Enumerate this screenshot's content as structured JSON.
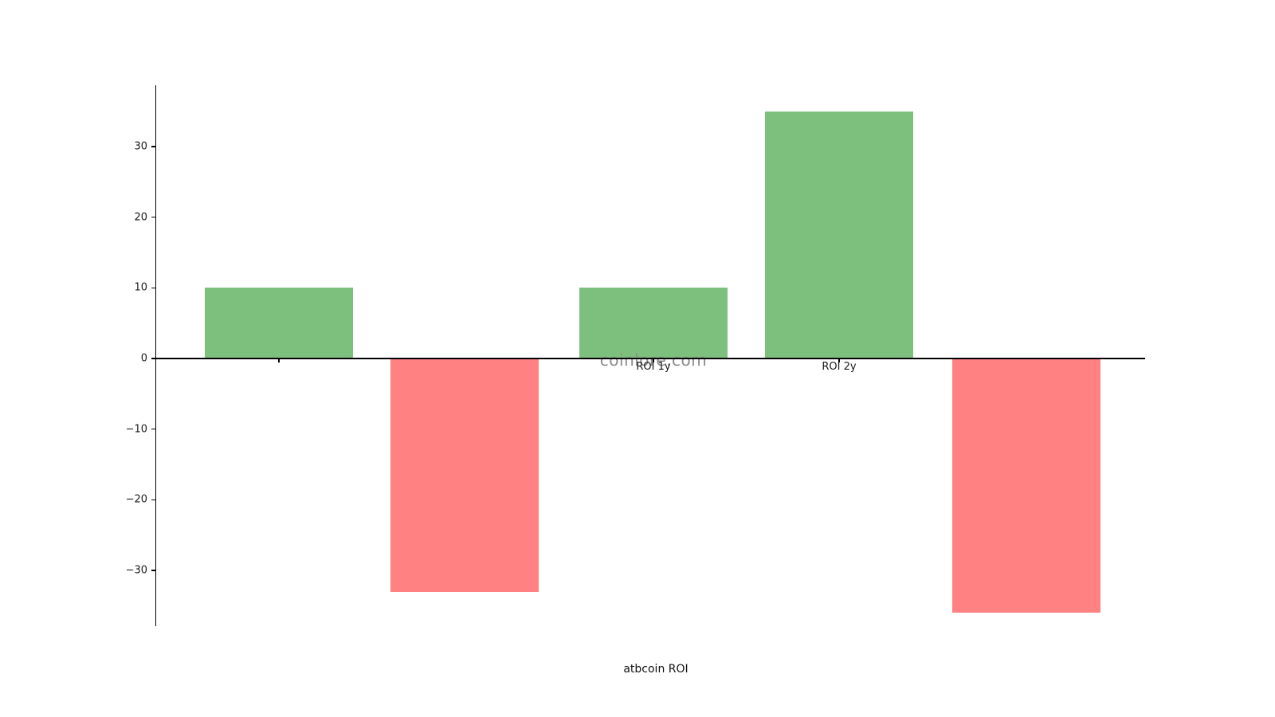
{
  "page": {
    "background": "#ffffff"
  },
  "watermark": {
    "text": "coinlore.com",
    "color": "#8c8c8c"
  },
  "chart_data": {
    "type": "bar",
    "title": "atbcoin ROI",
    "categories": [
      "",
      "",
      "ROI 1y",
      "ROI 2y",
      ""
    ],
    "values": [
      10,
      -33,
      10,
      35,
      -36
    ],
    "series": [
      {
        "name": "atbcoin ROI",
        "values": [
          10,
          -33,
          10,
          35,
          -36
        ]
      }
    ],
    "bar_colors": [
      "#7dc07d",
      "#ff8181",
      "#7dc07d",
      "#7dc07d",
      "#ff8181"
    ],
    "positive_color": "#7dc07d",
    "negative_color": "#ff8181",
    "yticks": [
      30,
      20,
      10,
      0,
      -10,
      -20,
      -30
    ],
    "ylim": [
      -38,
      38.5
    ],
    "xlabel": "",
    "ylabel": "",
    "grid": false,
    "legend_position": "none",
    "axis_color": "#000000",
    "tick_text_color": "#1a1a1a"
  }
}
